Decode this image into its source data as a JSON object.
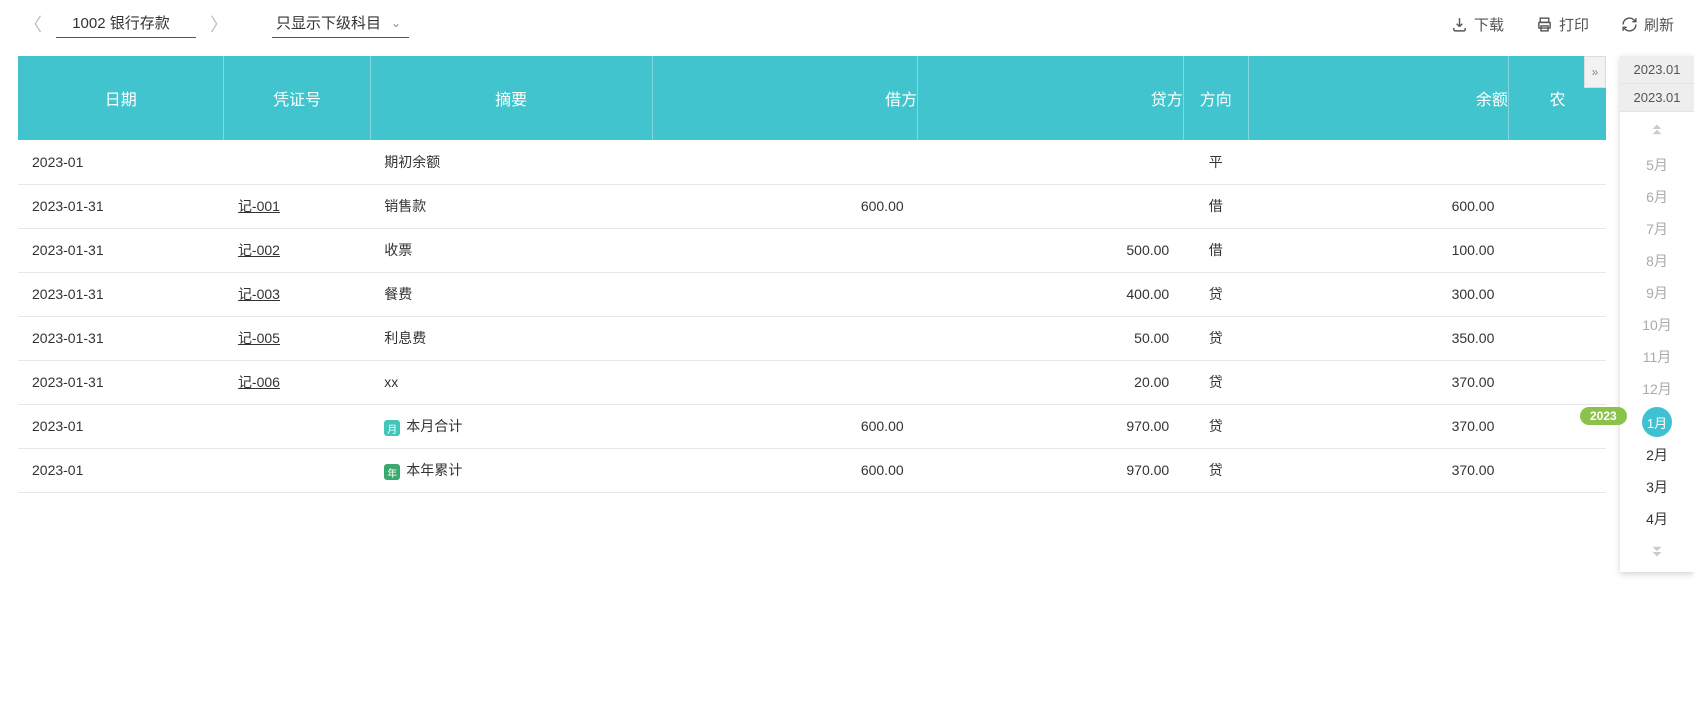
{
  "toolbar": {
    "account_label": "1002  银行存款",
    "filter_label": "只显示下级科目",
    "download": "下载",
    "print": "打印",
    "refresh": "刷新"
  },
  "table": {
    "columns": {
      "date": "日期",
      "voucher": "凭证号",
      "summary": "摘要",
      "debit": "借方",
      "credit": "贷方",
      "direction": "方向",
      "balance": "余额",
      "extra": "农"
    },
    "rows": [
      {
        "date": "2023-01",
        "voucher": "",
        "summary": "期初余额",
        "summary_icon": "",
        "icon_color": "",
        "debit": "",
        "credit": "",
        "direction": "平",
        "balance": ""
      },
      {
        "date": "2023-01-31",
        "voucher": "记-001",
        "summary": "销售款",
        "summary_icon": "",
        "icon_color": "",
        "debit": "600.00",
        "credit": "",
        "direction": "借",
        "balance": "600.00"
      },
      {
        "date": "2023-01-31",
        "voucher": "记-002",
        "summary": "收票",
        "summary_icon": "",
        "icon_color": "",
        "debit": "",
        "credit": "500.00",
        "direction": "借",
        "balance": "100.00"
      },
      {
        "date": "2023-01-31",
        "voucher": "记-003",
        "summary": "餐费",
        "summary_icon": "",
        "icon_color": "",
        "debit": "",
        "credit": "400.00",
        "direction": "贷",
        "balance": "300.00"
      },
      {
        "date": "2023-01-31",
        "voucher": "记-005",
        "summary": "利息费",
        "summary_icon": "",
        "icon_color": "",
        "debit": "",
        "credit": "50.00",
        "direction": "贷",
        "balance": "350.00"
      },
      {
        "date": "2023-01-31",
        "voucher": "记-006",
        "summary": "xx",
        "summary_icon": "",
        "icon_color": "",
        "debit": "",
        "credit": "20.00",
        "direction": "贷",
        "balance": "370.00"
      },
      {
        "date": "2023-01",
        "voucher": "",
        "summary": "本月合计",
        "summary_icon": "月",
        "icon_color": "#43c5b8",
        "debit": "600.00",
        "credit": "970.00",
        "direction": "贷",
        "balance": "370.00"
      },
      {
        "date": "2023-01",
        "voucher": "",
        "summary": "本年累计",
        "summary_icon": "年",
        "icon_color": "#3aa86f",
        "debit": "600.00",
        "credit": "970.00",
        "direction": "贷",
        "balance": "370.00"
      }
    ]
  },
  "period": {
    "from": "2023.01",
    "to": "2023.01",
    "year_badge": "2023",
    "active": "1月",
    "months": [
      "5月",
      "6月",
      "7月",
      "8月",
      "9月",
      "10月",
      "11月",
      "12月",
      "1月",
      "2月",
      "3月",
      "4月"
    ],
    "enabled_from_index": 8
  },
  "colors": {
    "header_bg": "#41c4ce",
    "active_month": "#3ec1d3",
    "year_badge": "#8bc34a"
  }
}
